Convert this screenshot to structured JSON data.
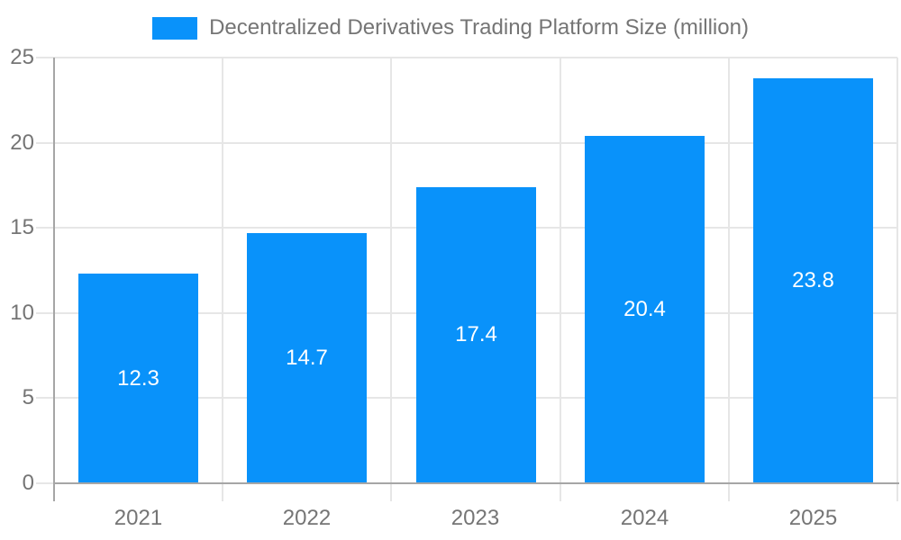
{
  "chart_data": {
    "type": "bar",
    "title": "Decentralized Derivatives Trading Platform Size (million)",
    "legend": {
      "position": "top",
      "entries": [
        {
          "label": "Decentralized Derivatives Trading Platform Size (million)",
          "color": "#0992fa"
        }
      ]
    },
    "categories": [
      "2021",
      "2022",
      "2023",
      "2024",
      "2025"
    ],
    "series": [
      {
        "name": "Decentralized Derivatives Trading Platform Size (million)",
        "values": [
          12.3,
          14.7,
          17.4,
          20.4,
          23.8
        ]
      }
    ],
    "data_labels": [
      "12.3",
      "14.7",
      "17.4",
      "20.4",
      "23.8"
    ],
    "xlabel": "",
    "ylabel": "",
    "ylim": [
      0,
      25
    ],
    "yticks": [
      0,
      5,
      10,
      15,
      20,
      25
    ],
    "grid": true,
    "colors": {
      "bar": "#0992fa",
      "bar_label_text": "#ffffff",
      "gridline": "#e6e6e6",
      "axis_line": "#a6a6a6",
      "tick_text": "#757575",
      "legend_text": "#757575",
      "background": "#ffffff"
    }
  }
}
